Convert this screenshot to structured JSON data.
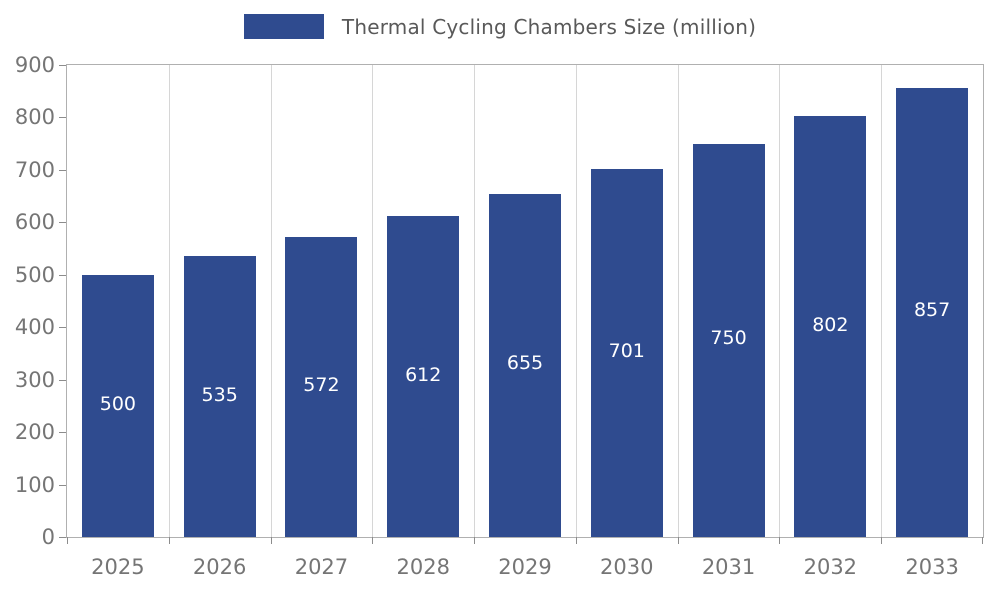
{
  "chart_data": {
    "type": "bar",
    "title": "Thermal Cycling Chambers Size (million)",
    "categories": [
      "2025",
      "2026",
      "2027",
      "2028",
      "2029",
      "2030",
      "2031",
      "2032",
      "2033"
    ],
    "values": [
      500,
      535,
      572,
      612,
      655,
      701,
      750,
      802,
      857
    ],
    "xlabel": "",
    "ylabel": "",
    "ylim": [
      0,
      900
    ],
    "yticks": [
      0,
      100,
      200,
      300,
      400,
      500,
      600,
      700,
      800,
      900
    ],
    "grid": "vertical-only",
    "legend_position": "top-center",
    "value_labels": "inside-middle-white"
  },
  "colors": {
    "bar": "#2f4b8f",
    "axis_text": "#757575",
    "grid": "#d6d6d6",
    "border": "#b0b0b0",
    "tick": "#8c8c8c",
    "title_text": "#595959",
    "value_label": "#ffffff"
  }
}
